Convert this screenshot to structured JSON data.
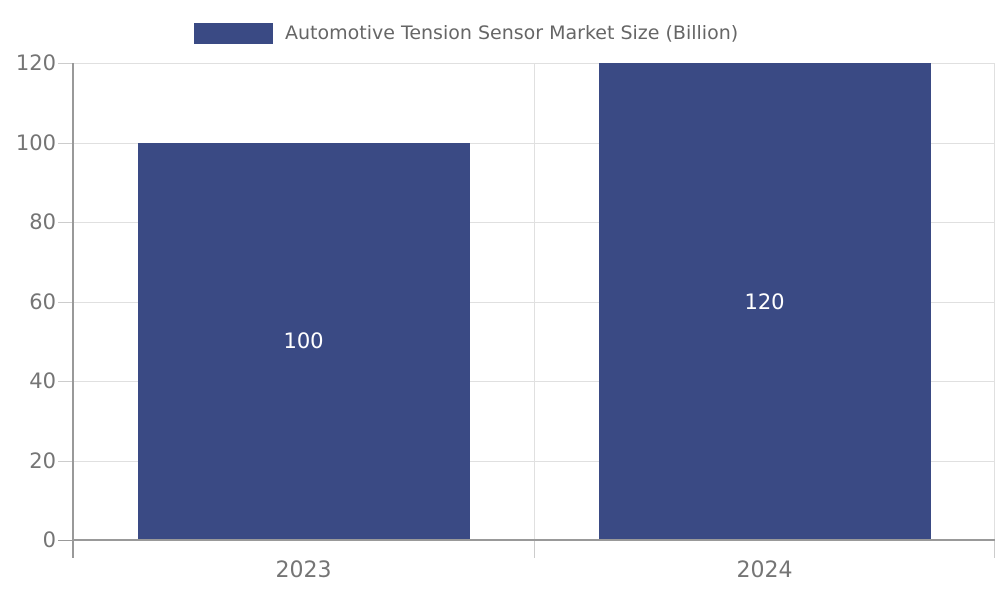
{
  "chart_data": {
    "type": "bar",
    "categories": [
      "2023",
      "2024"
    ],
    "series": [
      {
        "name": "Automotive Tension Sensor Market Size (Billion)",
        "values": [
          100,
          120
        ]
      }
    ],
    "value_labels": [
      "100",
      "120"
    ],
    "ylim": [
      0,
      120
    ],
    "yticks": [
      0,
      20,
      40,
      60,
      80,
      100,
      120
    ],
    "grid": true,
    "legend_position": "top-center",
    "colors": {
      "bar": "#3a4a84",
      "value_label": "#ffffff",
      "legend_text": "#666666",
      "tick_text": "#757575",
      "axis_line": "#999999",
      "gridline": "#e0e0e0",
      "tick_mark": "#cccccc",
      "background": "#ffffff"
    }
  }
}
